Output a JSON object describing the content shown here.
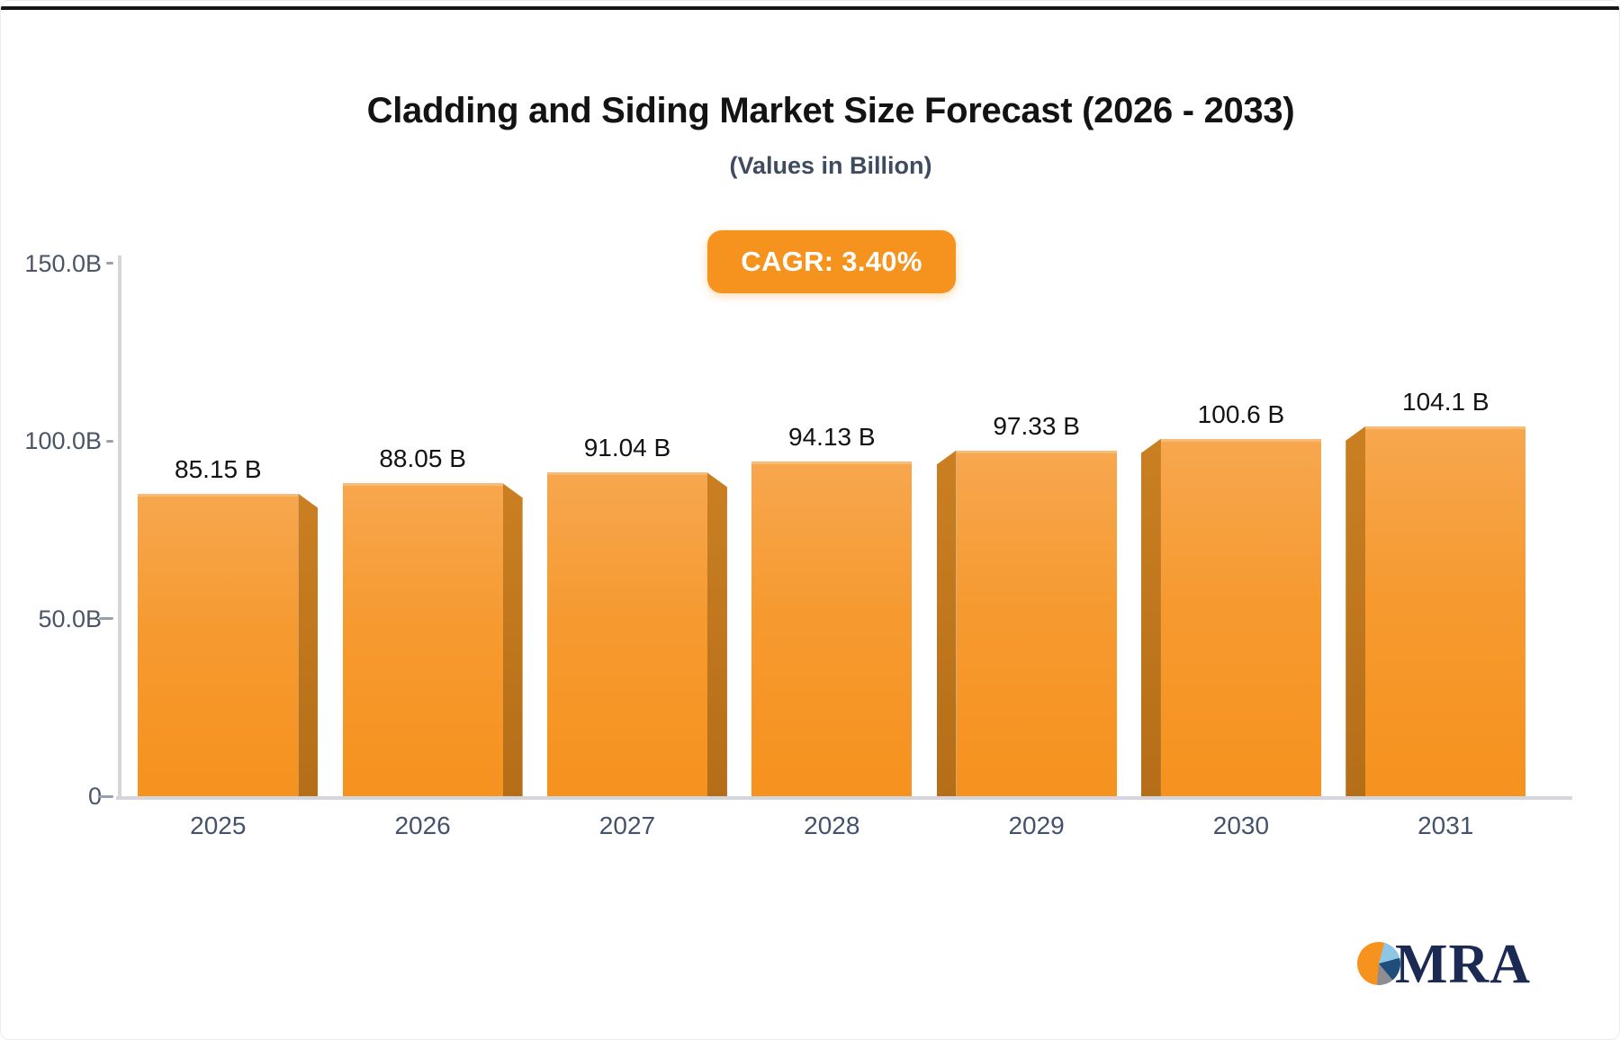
{
  "chart_data": {
    "type": "bar",
    "title": "Cladding and Siding Market Size Forecast (2026 - 2033)",
    "subtitle": "(Values in Billion)",
    "cagr_badge": "CAGR: 3.40%",
    "categories": [
      "2025",
      "2026",
      "2027",
      "2028",
      "2029",
      "2030",
      "2031"
    ],
    "values": [
      85.15,
      88.05,
      91.04,
      94.13,
      97.33,
      100.6,
      104.1
    ],
    "value_labels": [
      "85.15 B",
      "88.05 B",
      "91.04 B",
      "94.13 B",
      "97.33 B",
      "100.6 B",
      "104.1 B"
    ],
    "ylabel": "",
    "xlabel": "",
    "ylim": [
      0,
      150
    ],
    "grid": false,
    "legend": "none",
    "y_axis_ticks": [
      {
        "value": 150,
        "label": "150.0B"
      },
      {
        "value": 100,
        "label": "100.0B"
      },
      {
        "value": 50,
        "label": "50.0B"
      },
      {
        "value": 0,
        "label": "0"
      }
    ],
    "colors": {
      "bar_face_top": "#f7a74f",
      "bar_face_bottom": "#f6921e",
      "bar_side": "#bf771c",
      "badge_background": "#f6921e",
      "badge_text": "#ffffff",
      "axis_line": "#d5d5dd",
      "axis_text": "#4a5568",
      "category_text": "#44526b",
      "value_text": "#121212"
    }
  },
  "logo": {
    "text": "MRA",
    "pie_colors": [
      "#f6921e",
      "#8ec6e6",
      "#1f4e7a",
      "#8e8e92"
    ],
    "text_color": "#1b2a52"
  }
}
